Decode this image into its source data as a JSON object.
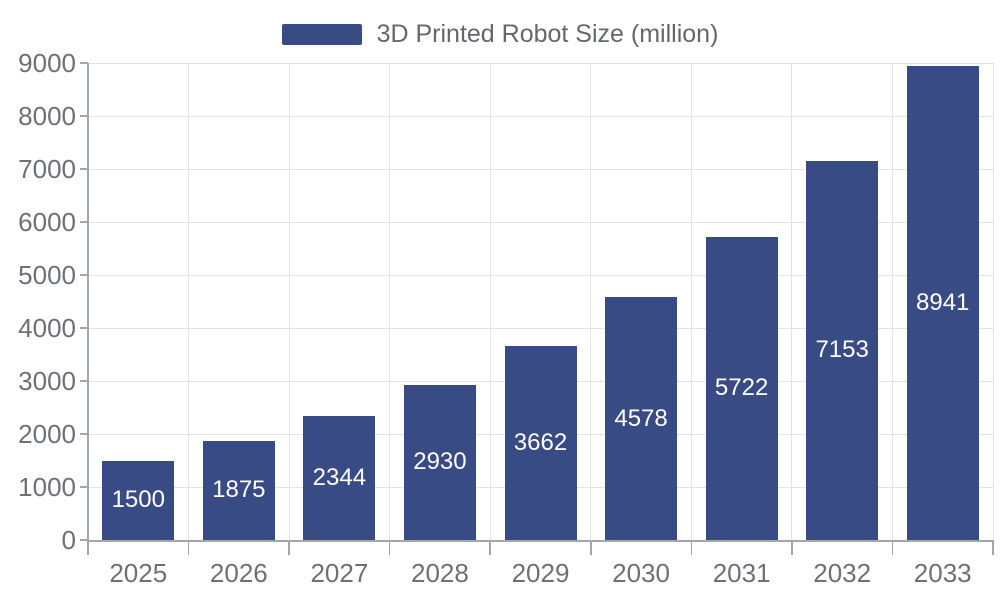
{
  "legend": {
    "label": "3D Printed Robot Size (million)",
    "swatch_color": "#394B85"
  },
  "chart_data": {
    "type": "bar",
    "title": "3D Printed Robot Size (million)",
    "categories": [
      "2025",
      "2026",
      "2027",
      "2028",
      "2029",
      "2030",
      "2031",
      "2032",
      "2033"
    ],
    "series": [
      {
        "name": "3D Printed Robot Size (million)",
        "values": [
          1500,
          1875,
          2344,
          2930,
          3662,
          4578,
          5722,
          7153,
          8941
        ]
      }
    ],
    "bar_labels": [
      "1500",
      "1875",
      "2344",
      "2930",
      "3662",
      "4578",
      "5722",
      "7153",
      "8941"
    ],
    "xlabel": "",
    "ylabel": "",
    "ylim": [
      0,
      9000
    ],
    "y_tick_labels": [
      "0",
      "1000",
      "2000",
      "3000",
      "4000",
      "5000",
      "6000",
      "7000",
      "8000",
      "9000"
    ],
    "grid": true,
    "legend_position": "top-center",
    "bar_label_position": "inside-center",
    "colors": {
      "bar": "#394B85",
      "bar_label": "#FFFFFF",
      "axis_text": "#6E7079",
      "grid_line": "#E3E4EA",
      "axis_line": "#A3A6AD"
    }
  }
}
